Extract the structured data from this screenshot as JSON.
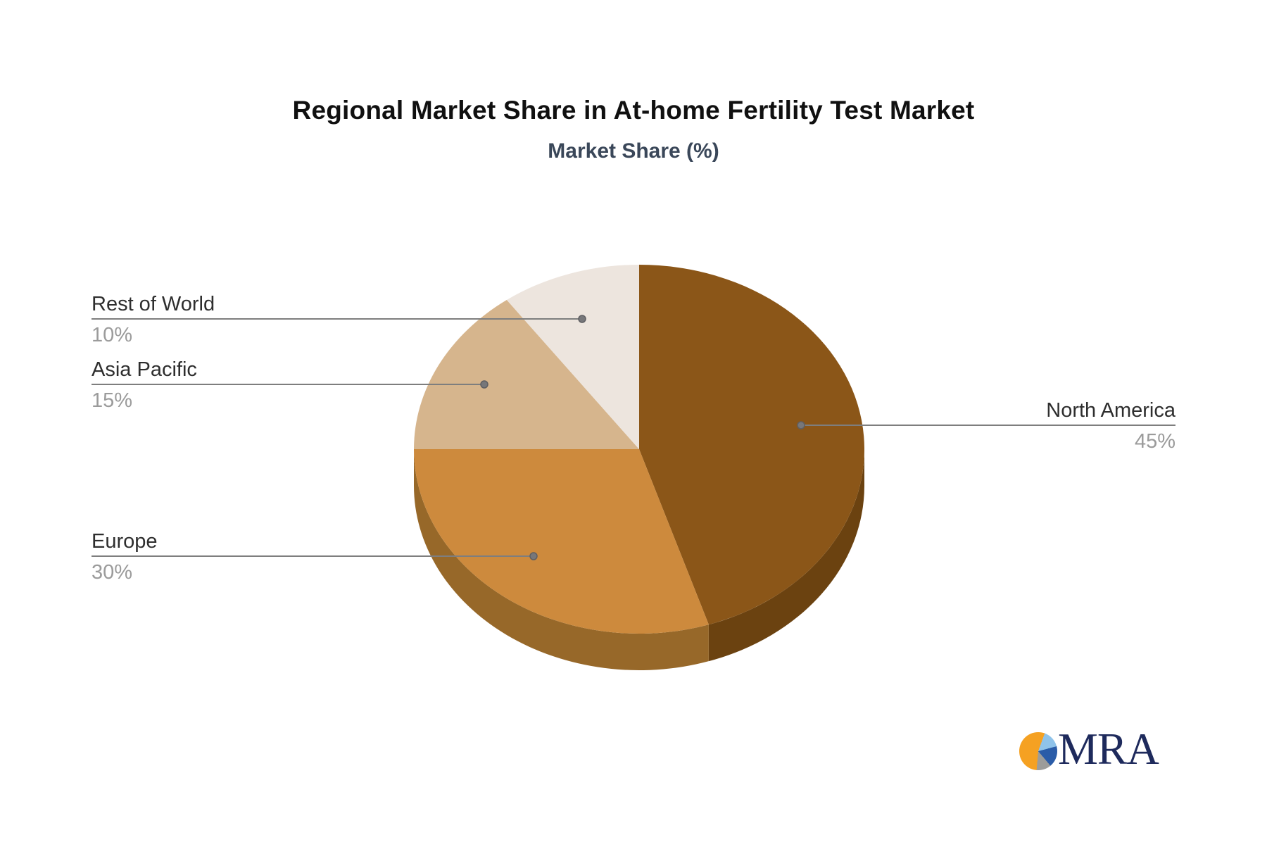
{
  "chart_data": {
    "type": "pie",
    "effect": "3d",
    "title": "Regional Market Share in At-home Fertility Test Market",
    "subtitle": "Market Share (%)",
    "start_angle_deg": 0,
    "direction": "clockwise",
    "total": 100,
    "slices": [
      {
        "label": "North America",
        "value": 45,
        "pct_label": "45%",
        "color": "#8B5618",
        "side_color": "#6B4210",
        "label_side": "right"
      },
      {
        "label": "Europe",
        "value": 30,
        "pct_label": "30%",
        "color": "#CD8A3D",
        "side_color": "#976829",
        "label_side": "left"
      },
      {
        "label": "Asia Pacific",
        "value": 15,
        "pct_label": "15%",
        "color": "#D6B58D",
        "label_side": "left"
      },
      {
        "label": "Rest of World",
        "value": 10,
        "pct_label": "10%",
        "color": "#EDE5DE",
        "label_side": "left"
      }
    ],
    "leader_line_color": "#7E7E7E",
    "leader_dot_color": "#77777A",
    "legend": "none",
    "grid": "off"
  },
  "colors": {
    "background": "#FFFFFF",
    "title": "#101010",
    "subtitle": "#3A4759",
    "label_text": "#2E2E2E",
    "percent_text": "#9B9B9B"
  },
  "logo": {
    "text": "MRA",
    "text_color": "#1E2A5C",
    "icon": "pie-chart-logo-icon",
    "icon_colors": {
      "orange": "#F5A122",
      "light_blue": "#8FC3EA",
      "dark_blue": "#2A5CA8",
      "gray": "#9C9C9A"
    }
  }
}
